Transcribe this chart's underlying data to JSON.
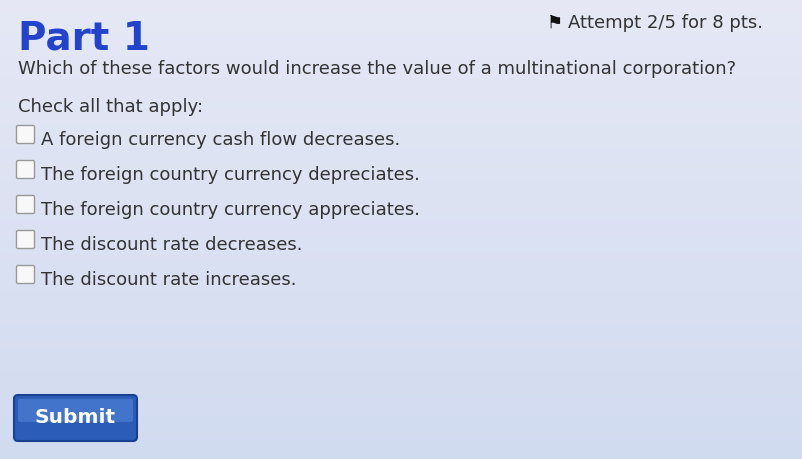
{
  "title": "Part 1",
  "title_color": "#2244cc",
  "title_fontsize": 28,
  "attempt_flag": "⚑",
  "attempt_text": "Attempt 2/5 for 8 pts.",
  "question": "Which of these factors would increase the value of a multinational corporation?",
  "instruction": "Check all that apply:",
  "options": [
    "A foreign currency cash flow decreases.",
    "The foreign country currency depreciates.",
    "The foreign country currency appreciates.",
    "The discount rate decreases.",
    "The discount rate increases."
  ],
  "submit_text": "Submit",
  "submit_bg_top": "#4a7fd4",
  "submit_bg_bottom": "#2a5aaa",
  "submit_text_color": "#ffffff",
  "bg_color": "#dde5f2",
  "text_color": "#333333",
  "checkbox_color": "#f8f8f8",
  "checkbox_border": "#999999"
}
